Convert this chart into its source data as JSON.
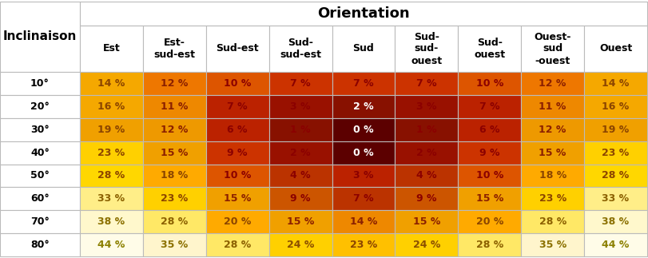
{
  "col_headers_display": [
    "Est",
    "Est-\nsud-est",
    "Sud-est",
    "Sud-\nsud-est",
    "Sud",
    "Sud-\nsud-\nouest",
    "Sud-\nouest",
    "Ouest-\nsud\n-ouest",
    "Ouest"
  ],
  "row_headers": [
    "10°",
    "20°",
    "30°",
    "40°",
    "50°",
    "60°",
    "70°",
    "80°"
  ],
  "values": [
    [
      "14 %",
      "12 %",
      "10 %",
      "7 %",
      "7 %",
      "7 %",
      "10 %",
      "12 %",
      "14 %"
    ],
    [
      "16 %",
      "11 %",
      "7 %",
      "3 %",
      "2 %",
      "3 %",
      "7 %",
      "11 %",
      "16 %"
    ],
    [
      "19 %",
      "12 %",
      "6 %",
      "1 %",
      "0 %",
      "1 %",
      "6 %",
      "12 %",
      "19 %"
    ],
    [
      "23 %",
      "15 %",
      "9 %",
      "2 %",
      "0 %",
      "2 %",
      "9 %",
      "15 %",
      "23 %"
    ],
    [
      "28 %",
      "18 %",
      "10 %",
      "4 %",
      "3 %",
      "4 %",
      "10 %",
      "18 %",
      "28 %"
    ],
    [
      "33 %",
      "23 %",
      "15 %",
      "9 %",
      "7 %",
      "9 %",
      "15 %",
      "23 %",
      "33 %"
    ],
    [
      "38 %",
      "28 %",
      "20 %",
      "15 %",
      "14 %",
      "15 %",
      "20 %",
      "28 %",
      "38 %"
    ],
    [
      "44 %",
      "35 %",
      "28 %",
      "24 %",
      "23 %",
      "24 %",
      "28 %",
      "35 %",
      "44 %"
    ]
  ],
  "cell_colors": [
    [
      "#F5A800",
      "#EE7700",
      "#DD5500",
      "#CC3300",
      "#CC3300",
      "#CC3300",
      "#DD5500",
      "#EE7700",
      "#F5A800"
    ],
    [
      "#F5A800",
      "#EE8800",
      "#BB2200",
      "#991100",
      "#881100",
      "#991100",
      "#BB2200",
      "#EE8800",
      "#F5A800"
    ],
    [
      "#F0A000",
      "#EE9900",
      "#BB2200",
      "#881100",
      "#5C0000",
      "#881100",
      "#BB2200",
      "#EE9900",
      "#F0A000"
    ],
    [
      "#FFD000",
      "#F0A000",
      "#CC3300",
      "#991100",
      "#5C0000",
      "#991100",
      "#CC3300",
      "#F0A000",
      "#FFD000"
    ],
    [
      "#FFD700",
      "#FFAA00",
      "#DD5500",
      "#BB3300",
      "#BB2200",
      "#BB3300",
      "#DD5500",
      "#FFAA00",
      "#FFD700"
    ],
    [
      "#FFEE88",
      "#FFD000",
      "#F0A000",
      "#CC5500",
      "#BB3300",
      "#CC5500",
      "#F0A000",
      "#FFD000",
      "#FFEE88"
    ],
    [
      "#FFF8CC",
      "#FFE866",
      "#FFAA00",
      "#F0A000",
      "#EE8800",
      "#F0A000",
      "#FFAA00",
      "#FFE866",
      "#FFF8CC"
    ],
    [
      "#FFFCE8",
      "#FFF5CC",
      "#FFE866",
      "#FFD000",
      "#FFC000",
      "#FFD000",
      "#FFE866",
      "#FFF5CC",
      "#FFFCE8"
    ]
  ],
  "text_colors": [
    [
      "#8B4500",
      "#8B2000",
      "#8B0000",
      "#8B0000",
      "#8B0000",
      "#8B0000",
      "#8B0000",
      "#8B2000",
      "#8B4500"
    ],
    [
      "#8B4500",
      "#8B2000",
      "#8B0000",
      "#8B0000",
      "#ffffff",
      "#8B0000",
      "#8B0000",
      "#8B2000",
      "#8B4500"
    ],
    [
      "#8B4500",
      "#8B2000",
      "#8B0000",
      "#8B0000",
      "#ffffff",
      "#8B0000",
      "#8B0000",
      "#8B2000",
      "#8B4500"
    ],
    [
      "#8B4500",
      "#8B2000",
      "#8B0000",
      "#8B0000",
      "#ffffff",
      "#8B0000",
      "#8B0000",
      "#8B2000",
      "#8B4500"
    ],
    [
      "#8B4500",
      "#8B4500",
      "#8B0000",
      "#8B0000",
      "#8B0000",
      "#8B0000",
      "#8B0000",
      "#8B4500",
      "#8B4500"
    ],
    [
      "#8B6000",
      "#8B4500",
      "#8B2000",
      "#8B0000",
      "#8B0000",
      "#8B0000",
      "#8B2000",
      "#8B4500",
      "#8B6000"
    ],
    [
      "#8B7000",
      "#8B6000",
      "#8B4500",
      "#8B2000",
      "#8B2000",
      "#8B2000",
      "#8B4500",
      "#8B6000",
      "#8B7000"
    ],
    [
      "#8B8000",
      "#8B7000",
      "#8B6000",
      "#8B5000",
      "#8B4500",
      "#8B5000",
      "#8B6000",
      "#8B7000",
      "#8B8000"
    ]
  ],
  "title": "Orientation",
  "row_label": "Inclinaison",
  "bg_color": "#ffffff",
  "border_color": "#bbbbbb",
  "title_fontsize": 13,
  "header_fontsize": 9,
  "cell_fontsize": 9,
  "row_label_fontsize": 11
}
